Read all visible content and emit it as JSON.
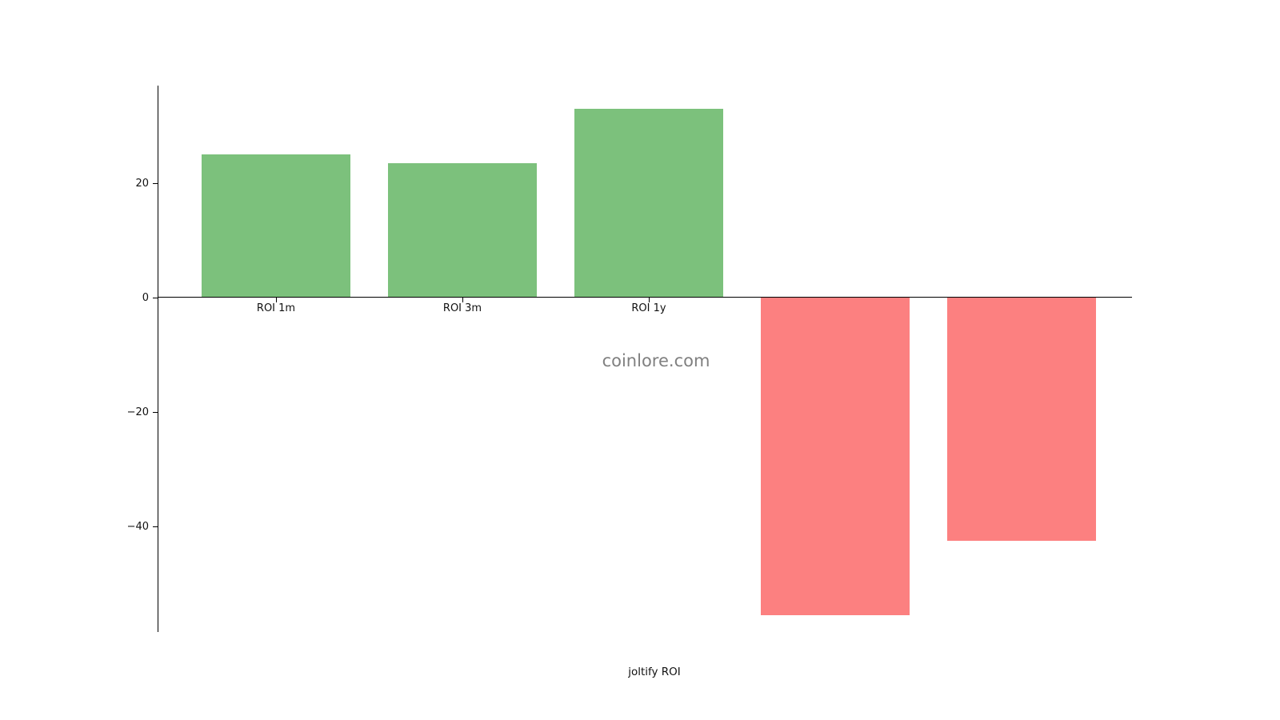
{
  "page": {
    "background": "#ffffff"
  },
  "watermark": {
    "text": "coinlore.com",
    "color": "#808080"
  },
  "chart_data": {
    "type": "bar",
    "title": "",
    "xlabel": "joltify ROI",
    "ylabel": "",
    "categories": [
      "ROI 1m",
      "ROI 3m",
      "ROI 1y",
      "",
      ""
    ],
    "values": [
      25,
      23.5,
      33,
      -55.5,
      -42.5
    ],
    "positive_color": "#7cc17c",
    "negative_color": "#fc8080",
    "yticks": [
      20,
      0,
      -20,
      -40
    ],
    "ytick_labels": [
      "20",
      "0",
      "−20",
      "−40"
    ],
    "ylim": [
      -58.5,
      37
    ],
    "grid": false,
    "legend_position": "none",
    "axis_color": "#000000"
  }
}
